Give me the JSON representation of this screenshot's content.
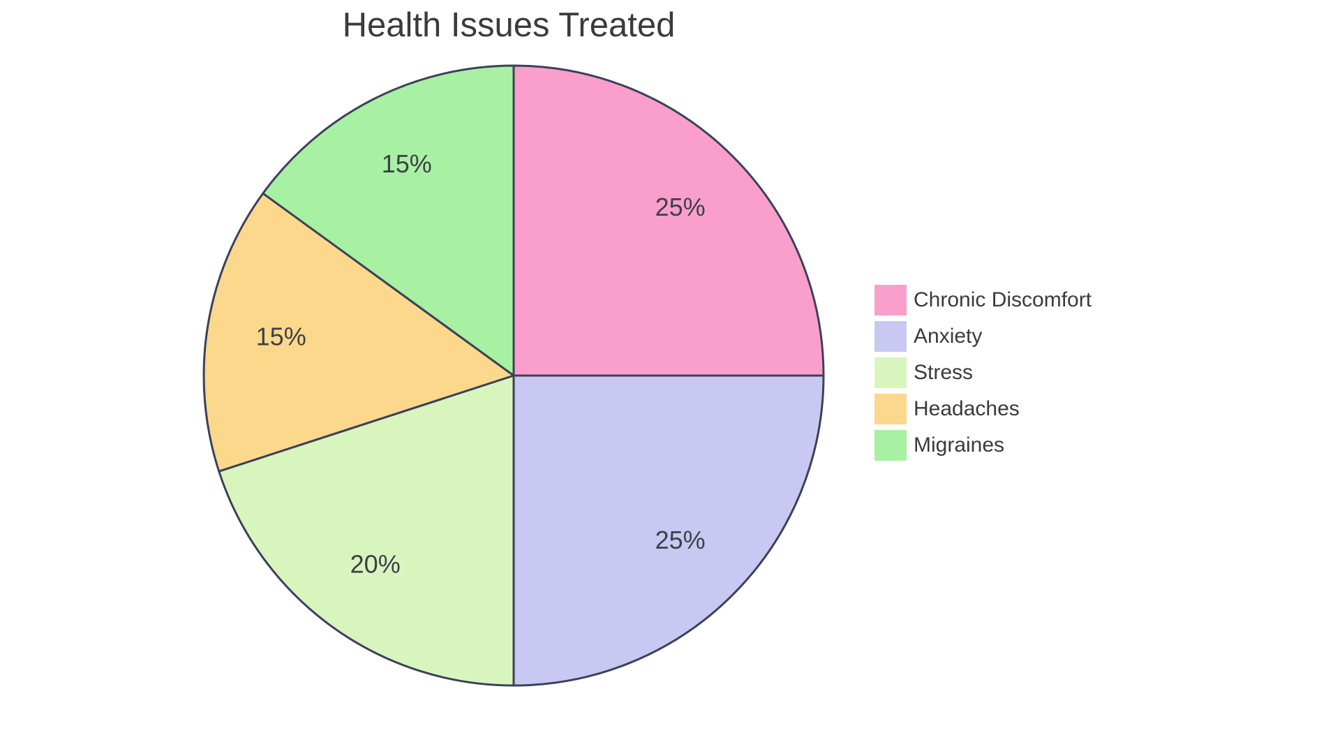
{
  "chart_data": {
    "type": "pie",
    "title": "Health Issues Treated",
    "labels": [
      "Chronic Discomfort",
      "Anxiety",
      "Stress",
      "Headaches",
      "Migraines"
    ],
    "values": [
      25,
      25,
      20,
      15,
      15
    ],
    "percent_labels": [
      "25%",
      "25%",
      "20%",
      "15%",
      "15%"
    ],
    "colors": [
      "#FA9FCB",
      "#C9C8F2",
      "#D9F5BE",
      "#FBD88C",
      "#A8F0A2"
    ],
    "edge_color": "#3C4158",
    "title_color": "#3B3B3B",
    "percent_label_color": "#3C4049",
    "legend_text_color": "#3A3A3A",
    "background": "#FFFFFF",
    "start_angle": "top",
    "direction": "clockwise",
    "legend_position": "center-right",
    "label_distance": 0.76
  }
}
